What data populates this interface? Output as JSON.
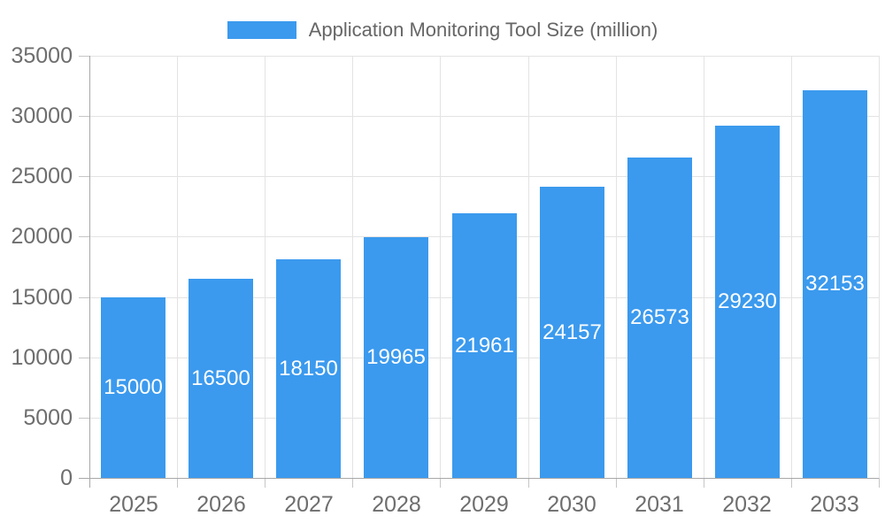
{
  "chart_data": {
    "type": "bar",
    "title": "Application Monitoring Tool Size (million)",
    "categories": [
      "2025",
      "2026",
      "2027",
      "2028",
      "2029",
      "2030",
      "2031",
      "2032",
      "2033"
    ],
    "values": [
      15000,
      16500,
      18150,
      19965,
      21961,
      24157,
      26573,
      29230,
      32153
    ],
    "bar_value_labels": [
      "15000",
      "16500",
      "18150",
      "19965",
      "21961",
      "24157",
      "26573",
      "29230",
      "32153"
    ],
    "xlabel": "",
    "ylabel": "",
    "ylim": [
      0,
      35000
    ],
    "y_ticks": [
      0,
      5000,
      10000,
      15000,
      20000,
      25000,
      30000,
      35000
    ],
    "grid": true,
    "legend_position": "top",
    "value_label_position": "inside-center"
  },
  "colors": {
    "bar": "#3b9aee",
    "bar_value_text": "#ffffff",
    "grid_line": "#e3e3e3",
    "axis_line": "#a8a8a8",
    "tick_mark": "#c6c6c6",
    "tick_text": "#6e6e6e",
    "legend_text": "#666666",
    "background": "#ffffff"
  }
}
